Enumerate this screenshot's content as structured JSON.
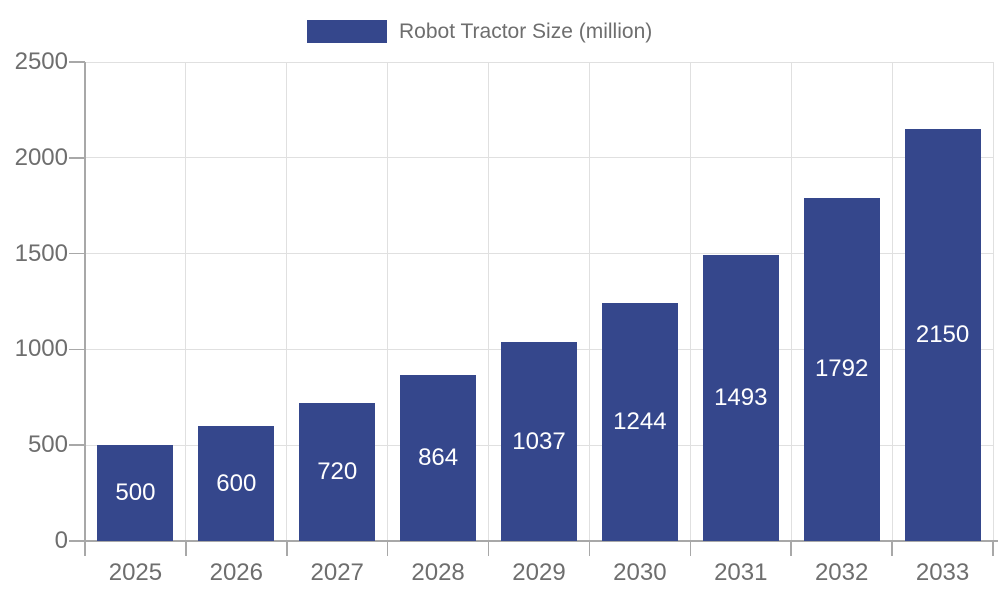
{
  "chart_data": {
    "type": "bar",
    "title": "Robot Tractor Size (million)",
    "categories": [
      "2025",
      "2026",
      "2027",
      "2028",
      "2029",
      "2030",
      "2031",
      "2032",
      "2033"
    ],
    "series": [
      {
        "name": "Robot Tractor Size (million)",
        "values": [
          500,
          600,
          720,
          864,
          1037,
          1244,
          1493,
          1792,
          2150
        ],
        "color": "#35478C"
      }
    ],
    "xlabel": "",
    "ylabel": "",
    "ylim": [
      0,
      2500
    ],
    "yticks": [
      0,
      500,
      1000,
      1500,
      2000,
      2500
    ],
    "grid": true,
    "legend_position": "top-center",
    "bar_value_labels": "inside-center",
    "bar_value_label_color": "#FFFFFF"
  },
  "legend": {
    "items": [
      {
        "label": "Robot Tractor Size (million)",
        "color": "#35478C"
      }
    ]
  },
  "colors": {
    "bar": "#35478C",
    "bar_label_text": "#FFFFFF",
    "axis_line": "#A8A8A8",
    "tick_mark": "#A8A8A8",
    "grid_line": "#E0E0E0",
    "tick_text": "#6E6E6E",
    "legend_text": "#6E6E6E",
    "background": "#FFFFFF"
  }
}
